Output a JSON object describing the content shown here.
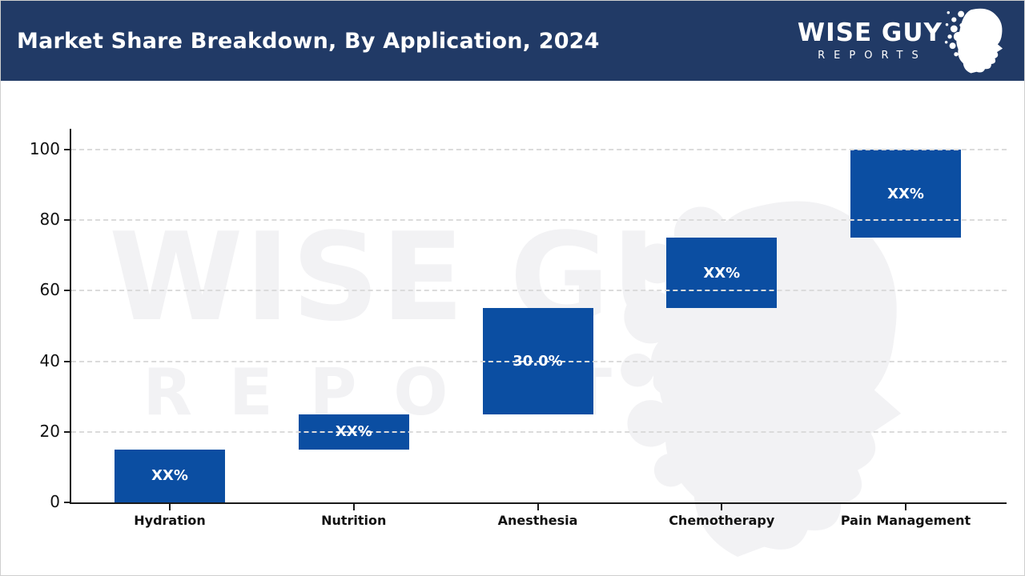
{
  "header": {
    "title": "Market Share Breakdown, By Application, 2024",
    "logo": {
      "line1": "WISE GUY",
      "line2": "REPORTS"
    }
  },
  "watermark": {
    "line1": "WISE GUY",
    "line2": "REPORTS"
  },
  "colors": {
    "header_bg": "#213A66",
    "bar": "#0B4EA2",
    "bar_label_text": "#FFFFFF",
    "grid": "#DBDBDB",
    "axis": "#1A1A1A",
    "tick_label": "#111111",
    "watermark": "#F2F2F4"
  },
  "chart_data": {
    "type": "bar",
    "subtype": "waterfall",
    "title": "Market Share Breakdown, By Application, 2024",
    "categories": [
      "Hydration",
      "Nutrition",
      "Anesthesia",
      "Chemotherapy",
      "Pain Management"
    ],
    "bars": [
      {
        "category": "Hydration",
        "start": 0,
        "end": 15,
        "label": "XX%"
      },
      {
        "category": "Nutrition",
        "start": 15,
        "end": 25,
        "label": "XX%"
      },
      {
        "category": "Anesthesia",
        "start": 25,
        "end": 55,
        "label": "30.0%"
      },
      {
        "category": "Chemotherapy",
        "start": 55,
        "end": 75,
        "label": "XX%"
      },
      {
        "category": "Pain Management",
        "start": 75,
        "end": 100,
        "label": "XX%"
      }
    ],
    "yticks": [
      0,
      20,
      40,
      60,
      80,
      100
    ],
    "ylim": [
      0,
      106
    ],
    "xlabel": "",
    "ylabel": "",
    "grid": true,
    "grid_style": "dashed",
    "legend": false
  }
}
